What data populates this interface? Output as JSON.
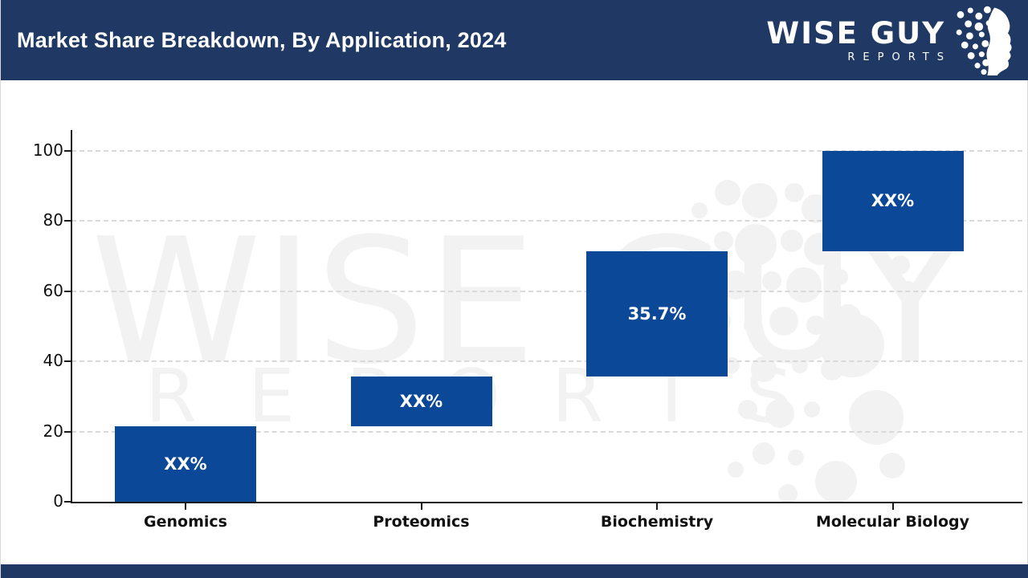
{
  "header": {
    "title": "Market Share Breakdown, By Application, 2024",
    "logo": {
      "wordmark": "WISE GUY",
      "subtext": "REPORTS"
    }
  },
  "watermark": {
    "line1": "WISE GUY",
    "line2": "REPORTS"
  },
  "chart_data": {
    "type": "bar",
    "subtype": "waterfall",
    "title": "Market Share Breakdown, By Application, 2024",
    "categories": [
      "Genomics",
      "Proteomics",
      "Biochemistry",
      "Molecular Biology"
    ],
    "values": [
      21.4,
      14.3,
      35.7,
      28.6
    ],
    "cumulative_start": [
      0,
      21.4,
      35.7,
      71.4
    ],
    "cumulative_end": [
      21.4,
      35.7,
      71.4,
      100
    ],
    "bar_labels": [
      "XX%",
      "XX%",
      "35.7%",
      "XX%"
    ],
    "yticks": [
      0,
      20,
      40,
      60,
      80,
      100
    ],
    "ylim": [
      0,
      106
    ],
    "xlabel": "",
    "ylabel": "",
    "grid": "horizontal-dashed",
    "legend": "none",
    "bar_color": "#0B4898",
    "bar_label_color": "#FFFFFF"
  },
  "colors": {
    "header_bg": "#1F3864",
    "footer_bg": "#1F3864",
    "axis": "#1A1A1A",
    "gridline": "#D9D9D9",
    "watermark": "#F2F2F3"
  }
}
